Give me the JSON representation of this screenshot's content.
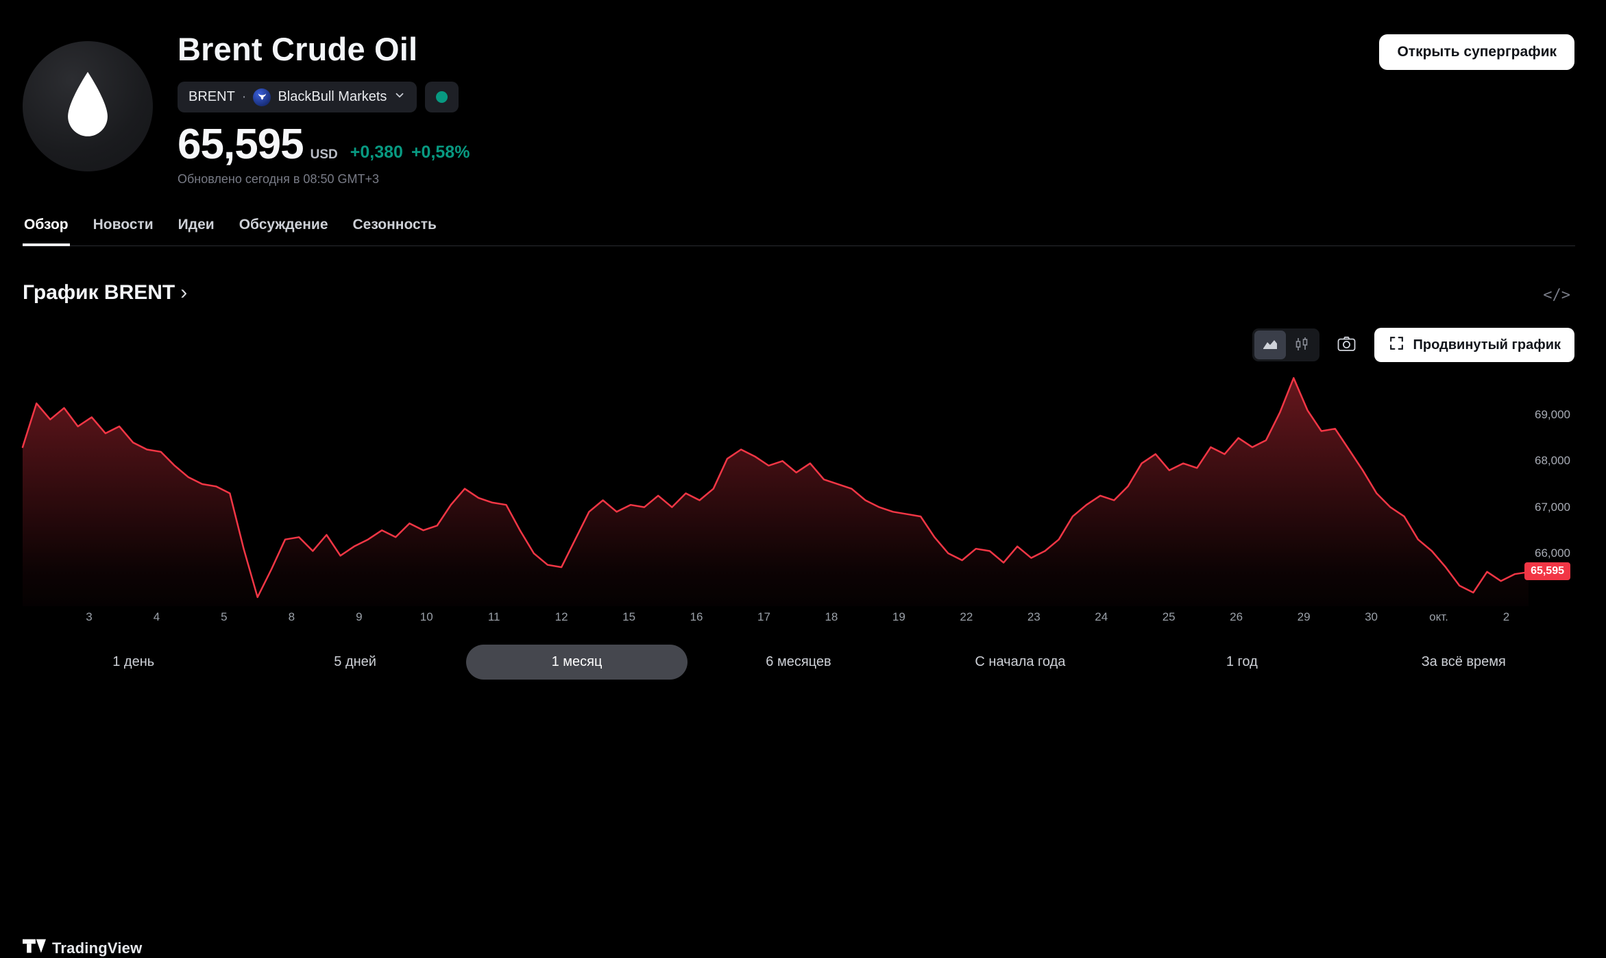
{
  "colors": {
    "green": "#089981",
    "red": "#f23645"
  },
  "header": {
    "title": "Brent Crude Oil",
    "symbol": "BRENT",
    "separator": "·",
    "broker": "BlackBull Markets",
    "price": "65,595",
    "currency": "USD",
    "change_abs": "+0,380",
    "change_pct": "+0,58%",
    "updated": "Обновлено сегодня в 08:50 GMT+3",
    "supergraph_label": "Открыть суперграфик"
  },
  "tabs": [
    {
      "label": "Обзор",
      "active": true
    },
    {
      "label": "Новости",
      "active": false
    },
    {
      "label": "Идеи",
      "active": false
    },
    {
      "label": "Обсуждение",
      "active": false
    },
    {
      "label": "Сезонность",
      "active": false
    }
  ],
  "section": {
    "title": "График BRENT",
    "chevron": "›",
    "code_icon": "</>"
  },
  "toolbar": {
    "advanced_label": "Продвинутый график"
  },
  "chart_data": {
    "type": "area",
    "title": "График BRENT",
    "line_color": "#f23645",
    "grid": false,
    "ylim": [
      64800,
      70200
    ],
    "last_price_label": "65,595",
    "last_value": 65595,
    "y_axis": [
      {
        "label": "69,000",
        "value": 69000
      },
      {
        "label": "68,000",
        "value": 68000
      },
      {
        "label": "67,000",
        "value": 67000
      },
      {
        "label": "66,000",
        "value": 66000
      }
    ],
    "x_labels": [
      "3",
      "4",
      "5",
      "8",
      "9",
      "10",
      "11",
      "12",
      "15",
      "16",
      "17",
      "18",
      "19",
      "22",
      "23",
      "24",
      "25",
      "26",
      "29",
      "30",
      "окт.",
      "2"
    ],
    "points_per_day": 5,
    "values": [
      68300,
      69250,
      68900,
      69150,
      68750,
      68950,
      68600,
      68750,
      68400,
      68250,
      68200,
      67900,
      67650,
      67500,
      67450,
      67300,
      66100,
      65050,
      65650,
      66300,
      66350,
      66050,
      66400,
      65950,
      66150,
      66300,
      66500,
      66350,
      66650,
      66500,
      66600,
      67050,
      67400,
      67200,
      67100,
      67050,
      66500,
      66000,
      65750,
      65700,
      66300,
      66900,
      67150,
      66900,
      67050,
      67000,
      67250,
      67000,
      67300,
      67150,
      67400,
      68050,
      68250,
      68100,
      67900,
      68000,
      67750,
      67950,
      67600,
      67500,
      67400,
      67150,
      67000,
      66900,
      66850,
      66800,
      66350,
      66000,
      65850,
      66100,
      66050,
      65800,
      66150,
      65900,
      66050,
      66300,
      66800,
      67050,
      67250,
      67150,
      67450,
      67950,
      68150,
      67800,
      67950,
      67850,
      68300,
      68150,
      68500,
      68300,
      68450,
      69050,
      69800,
      69100,
      68650,
      68700,
      68250,
      67800,
      67300,
      67000,
      66800,
      66300,
      66050,
      65700,
      65300,
      65150,
      65600,
      65400,
      65550,
      65595
    ]
  },
  "attribution": {
    "brand": "TradingView"
  },
  "ranges": [
    {
      "label": "1 день",
      "active": false
    },
    {
      "label": "5 дней",
      "active": false
    },
    {
      "label": "1 месяц",
      "active": true
    },
    {
      "label": "6 месяцев",
      "active": false
    },
    {
      "label": "С начала года",
      "active": false
    },
    {
      "label": "1 год",
      "active": false
    },
    {
      "label": "За всё время",
      "active": false
    }
  ]
}
